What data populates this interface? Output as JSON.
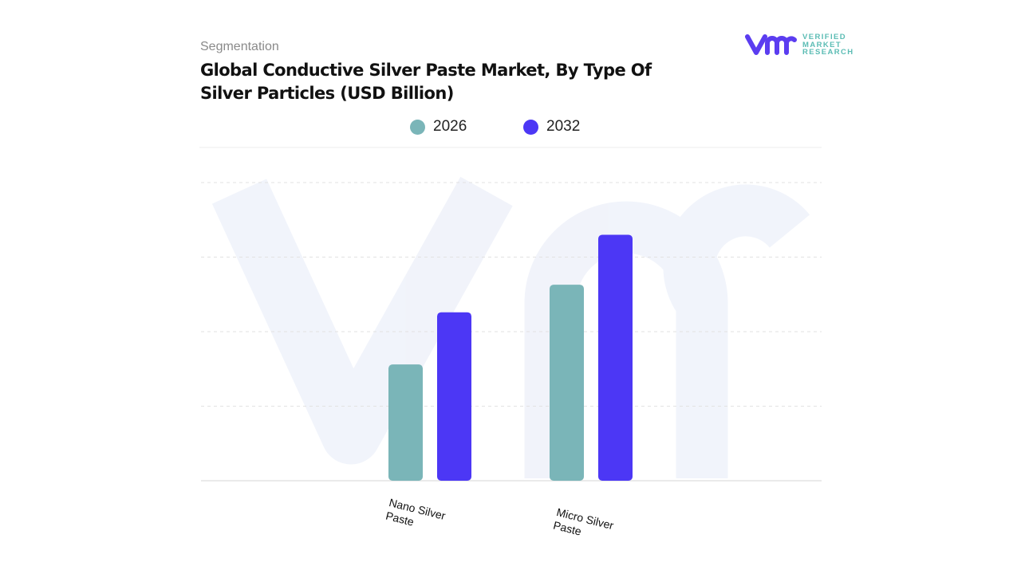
{
  "header": {
    "section": "Segmentation",
    "title": "Global Conductive Silver Paste Market, By Type Of Silver Particles (USD Billion)"
  },
  "logo": {
    "line1": "VERIFIED",
    "line2": "MARKET",
    "line3": "RESEARCH",
    "mark": "vmr"
  },
  "colors": {
    "series_2026": "#7ab5b8",
    "series_2032": "#4c37f5",
    "logo_purple": "#5b3df0",
    "logo_teal": "#5bbcb4"
  },
  "chart_data": {
    "type": "bar",
    "title": "Global Conductive Silver Paste Market, By Type Of Silver Particles (USD Billion)",
    "categories": [
      "Nano Silver\nPaste",
      "Micro Silver\nPaste"
    ],
    "series": [
      {
        "name": "2026",
        "values": [
          1.56,
          2.63
        ]
      },
      {
        "name": "2032",
        "values": [
          2.26,
          3.3
        ]
      }
    ],
    "ylim": [
      0,
      4
    ],
    "y_ticks_shown": false,
    "grid": true,
    "legend": "top-center",
    "xlabel": "",
    "ylabel": ""
  }
}
